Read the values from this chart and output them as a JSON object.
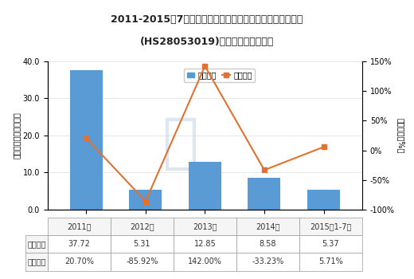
{
  "title_line1": "2011-2015年7月其他稀土金属、鈕（未相混合或相互燔合）",
  "title_line2": "(HS28053019)出口总额及增速统计",
  "categories": [
    "2011年",
    "2012年",
    "2013年",
    "2014年",
    "2015年1-7月"
  ],
  "bar_values": [
    37.72,
    5.31,
    12.85,
    8.58,
    5.37
  ],
  "growth_values": [
    20.7,
    -85.92,
    142.0,
    -33.23,
    5.71
  ],
  "bar_color": "#5B9BD5",
  "line_color": "#E07232",
  "marker_color": "#E07232",
  "ylabel_left": "出口金额（百万美元）",
  "ylabel_right": "同比增长（%）",
  "ylim_left": [
    0,
    40
  ],
  "ylim_right": [
    -100,
    150
  ],
  "yticks_left": [
    0.0,
    10.0,
    20.0,
    30.0,
    40.0
  ],
  "yticks_right": [
    -100,
    -50,
    0,
    50,
    100,
    150
  ],
  "ytick_labels_right": [
    "-100%",
    "-50%",
    "0%",
    "50%",
    "100%",
    "150%"
  ],
  "legend_bar_label": "出口金额",
  "legend_line_label": "同比增长",
  "table_row1_label": "出口金额",
  "table_row2_label": "同比增长",
  "table_row1_values": [
    "37.72",
    "5.31",
    "12.85",
    "8.58",
    "5.37"
  ],
  "table_row2_values": [
    "20.70%",
    "-85.92%",
    "142.00%",
    "-33.23%",
    "5.71%"
  ],
  "background_color": "#FFFFFF",
  "watermark_color": "#C8D8E8",
  "grid_color": "#DDDDDD"
}
